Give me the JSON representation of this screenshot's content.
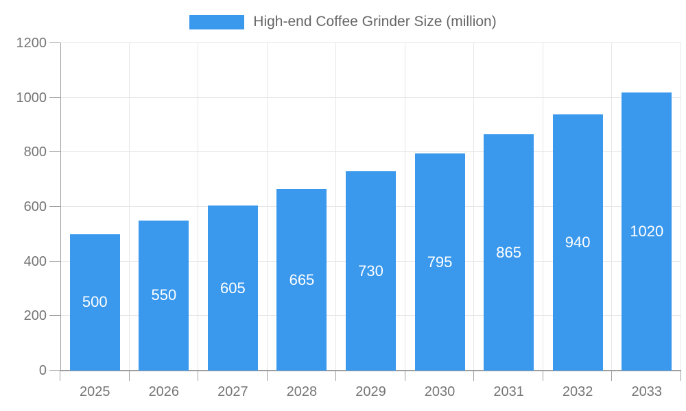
{
  "chart_data": {
    "type": "bar",
    "title": "High-end Coffee Grinder Size (million)",
    "legend_position": "top",
    "categories": [
      "2025",
      "2026",
      "2027",
      "2028",
      "2029",
      "2030",
      "2031",
      "2032",
      "2033"
    ],
    "values": [
      500,
      550,
      605,
      665,
      730,
      795,
      865,
      940,
      1020
    ],
    "xlabel": "",
    "ylabel": "",
    "ylim": [
      0,
      1200
    ],
    "yticks": [
      0,
      200,
      400,
      600,
      800,
      1000,
      1200
    ],
    "grid": true,
    "bar_labels_visible": true
  },
  "style": {
    "bar_color": "#3b99ed",
    "bar_label_color": "#ffffff",
    "axis_label_color": "#757575",
    "legend_text_color": "#666666",
    "axis_line_color": "#9e9e9e",
    "grid_line_color": "#e6e6e6",
    "background_color": "#ffffff"
  }
}
